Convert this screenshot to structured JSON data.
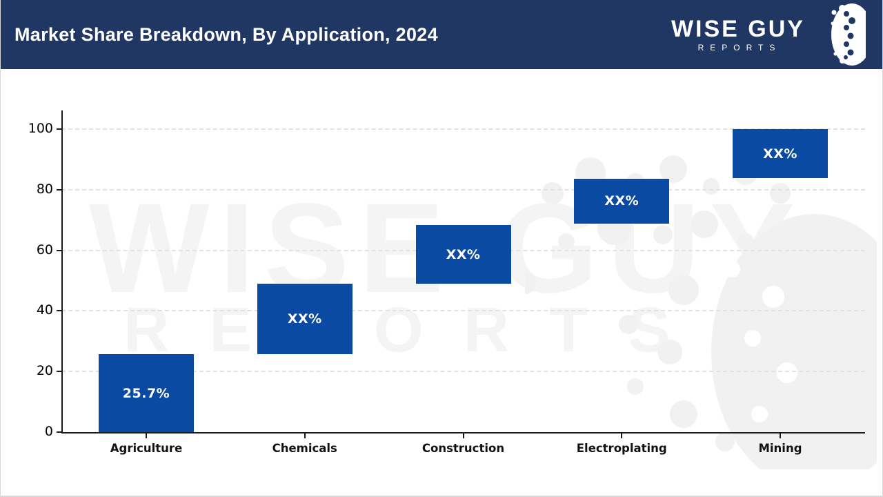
{
  "header": {
    "title": "Market Share Breakdown, By Application, 2024",
    "bg_color": "#213763",
    "logo": {
      "line1": "WISE GUY",
      "line2": "REPORTS"
    }
  },
  "watermark": {
    "line1": "WISE GUY",
    "line2": "REPORTS"
  },
  "chart_data": {
    "type": "bar",
    "subtype": "waterfall",
    "title": "Market Share Breakdown, By Application, 2024",
    "categories": [
      "Agriculture",
      "Chemicals",
      "Construction",
      "Electroplating",
      "Mining"
    ],
    "segments": [
      {
        "category": "Agriculture",
        "start": 0,
        "end": 25.7,
        "label": "25.7%"
      },
      {
        "category": "Chemicals",
        "start": 25.7,
        "end": 49.0,
        "label": "XX%"
      },
      {
        "category": "Construction",
        "start": 49.0,
        "end": 68.3,
        "label": "XX%"
      },
      {
        "category": "Electroplating",
        "start": 68.8,
        "end": 83.6,
        "label": "XX%"
      },
      {
        "category": "Mining",
        "start": 83.8,
        "end": 100,
        "label": "XX%"
      }
    ],
    "yticks": [
      0,
      20,
      40,
      60,
      80,
      100
    ],
    "ylim": [
      0,
      106
    ],
    "xlabel": "",
    "ylabel": "",
    "bar_color": "#0b4aa2",
    "bar_label_color": "#ffffff",
    "grid": "dashed-horizontal",
    "legend": "none"
  }
}
